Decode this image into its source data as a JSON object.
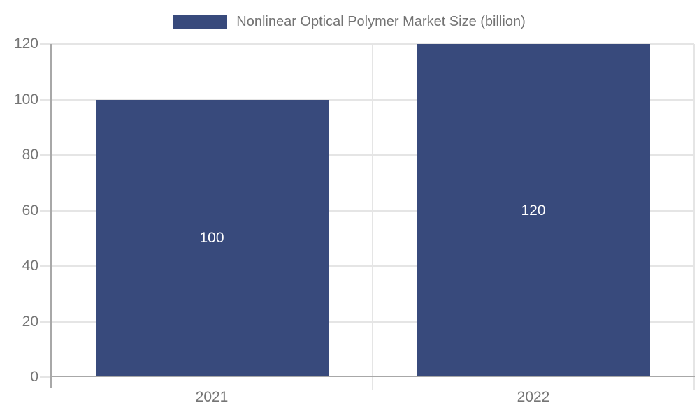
{
  "chart_data": {
    "type": "bar",
    "title": "",
    "series_name": "Nonlinear Optical Polymer Market Size (billion)",
    "categories": [
      "2021",
      "2022"
    ],
    "values": [
      100,
      120
    ],
    "bar_labels": [
      "100",
      "120"
    ],
    "yticks": [
      0,
      20,
      40,
      60,
      80,
      100,
      120
    ],
    "ylim": [
      0,
      120
    ],
    "xlabel": "",
    "ylabel": "",
    "grid": true,
    "legend_position": "top-center",
    "bar_label_position": "inside-center",
    "colors": {
      "bar": "#384a7c",
      "bar_label": "#ffffff",
      "tick_label": "#757575",
      "legend_text": "#737373",
      "axis_line": "#a8a8a8",
      "gridline": "#e5e5e5",
      "background": "#ffffff"
    }
  }
}
